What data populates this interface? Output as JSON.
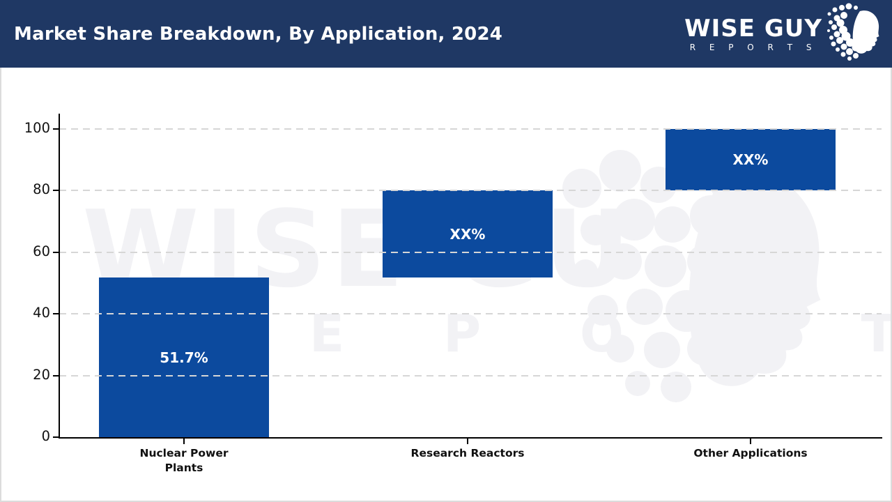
{
  "header": {
    "title": "Market Share Breakdown, By Application, 2024",
    "logo": {
      "line1": "WISE GUY",
      "line2": "R E P O R T S"
    }
  },
  "watermark": {
    "line1": "WISE GU",
    "line2": "R E P O R T S"
  },
  "colors": {
    "header_bg": "#1F3864",
    "bar": "#0C4A9E",
    "bar_label": "#FFFFFF",
    "grid": "#D6D6D6",
    "axis": "#000000",
    "watermark": "#F2F2F5",
    "frame": "#DCDCDC"
  },
  "chart_data": {
    "type": "bar",
    "subtype": "floating-segment-bars",
    "title": "Market Share Breakdown, By Application, 2024",
    "categories": [
      "Nuclear Power Plants",
      "Research Reactors",
      "Other Applications"
    ],
    "bars": [
      {
        "category": "Nuclear Power Plants",
        "start": 0,
        "end": 51.7,
        "label": "51.7%"
      },
      {
        "category": "Research Reactors",
        "start": 51.7,
        "end": 80,
        "label": "XX%"
      },
      {
        "category": "Other Applications",
        "start": 80,
        "end": 100,
        "label": "XX%"
      }
    ],
    "ylim": [
      0,
      100
    ],
    "yticks": [
      0,
      20,
      40,
      60,
      80,
      100
    ],
    "xlabel": "",
    "ylabel": "",
    "grid": "horizontal-dashed",
    "legend": "none"
  }
}
